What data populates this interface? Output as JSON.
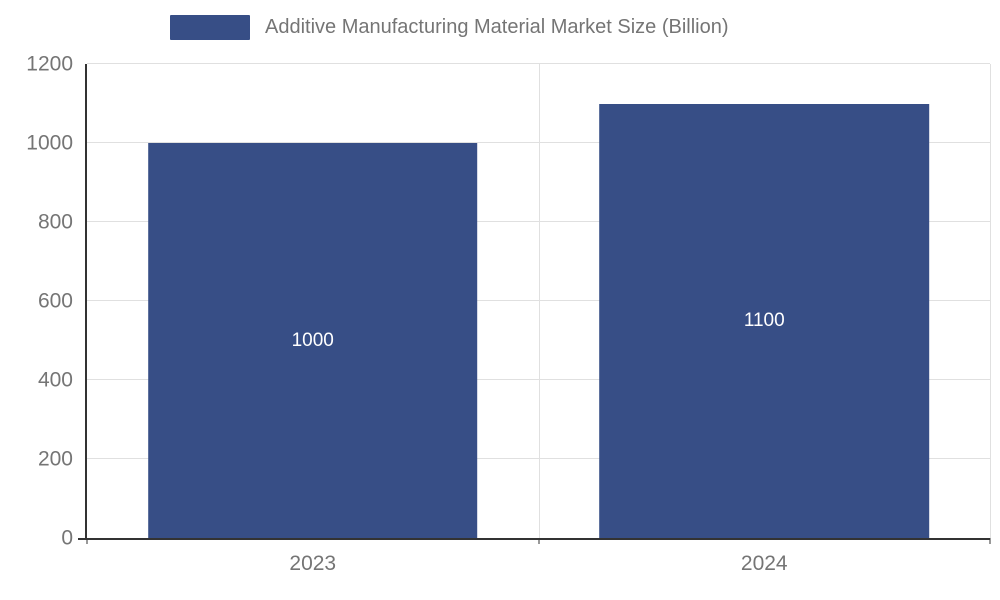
{
  "chart_data": {
    "type": "bar",
    "title": "Additive Manufacturing Material Market Size (Billion)",
    "categories": [
      "2023",
      "2024"
    ],
    "values": [
      1000,
      1100
    ],
    "ylim": [
      0,
      1200
    ],
    "yticks": [
      0,
      200,
      400,
      600,
      800,
      1000,
      1200
    ],
    "xlabel": "",
    "ylabel": "",
    "grid": "horizontal-and-category-split",
    "legend_position": "top",
    "bar_color": "#374E86",
    "value_label_color": "#FFFFFF",
    "axis_text_color": "#757575",
    "gridline_color": "#E0E0E0",
    "axis_line_color": "#333333"
  }
}
